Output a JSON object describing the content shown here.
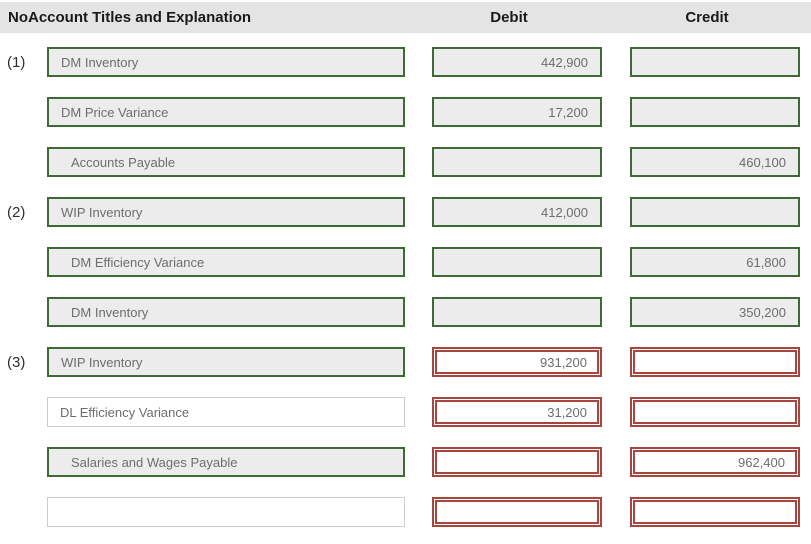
{
  "header": {
    "no": "No.",
    "account": "Account Titles and Explanation",
    "debit": "Debit",
    "credit": "Credit"
  },
  "colors": {
    "header_bg": "#e4e4e4",
    "correct_border_green": "#3e6b35",
    "incorrect_border_red": "#a8453f",
    "validated_field_bg": "#ececec",
    "field_text": "#6d6d6d"
  },
  "rows": [
    {
      "no": "(1)",
      "account": "DM Inventory",
      "indent": false,
      "account_state": "validated",
      "debit": "442,900",
      "credit": "",
      "amount_state": "correct"
    },
    {
      "no": "",
      "account": "DM Price Variance",
      "indent": false,
      "account_state": "validated",
      "debit": "17,200",
      "credit": "",
      "amount_state": "correct"
    },
    {
      "no": "",
      "account": "Accounts Payable",
      "indent": true,
      "account_state": "validated",
      "debit": "",
      "credit": "460,100",
      "amount_state": "correct"
    },
    {
      "no": "(2)",
      "account": "WIP Inventory",
      "indent": false,
      "account_state": "validated",
      "debit": "412,000",
      "credit": "",
      "amount_state": "correct"
    },
    {
      "no": "",
      "account": "DM Efficiency Variance",
      "indent": true,
      "account_state": "validated",
      "debit": "",
      "credit": "61,800",
      "amount_state": "correct"
    },
    {
      "no": "",
      "account": "DM Inventory",
      "indent": true,
      "account_state": "validated",
      "debit": "",
      "credit": "350,200",
      "amount_state": "correct"
    },
    {
      "no": "(3)",
      "account": "WIP Inventory",
      "indent": false,
      "account_state": "validated",
      "debit": "931,200",
      "credit": "",
      "amount_state": "incorrect"
    },
    {
      "no": "",
      "account": "DL Efficiency Variance",
      "indent": false,
      "account_state": "editable",
      "debit": "31,200",
      "credit": "",
      "amount_state": "incorrect"
    },
    {
      "no": "",
      "account": "Salaries and Wages Payable",
      "indent": true,
      "account_state": "validated",
      "debit": "",
      "credit": "962,400",
      "amount_state": "incorrect"
    },
    {
      "no": "",
      "account": "",
      "indent": false,
      "account_state": "editable",
      "debit": "",
      "credit": "",
      "amount_state": "incorrect"
    }
  ]
}
